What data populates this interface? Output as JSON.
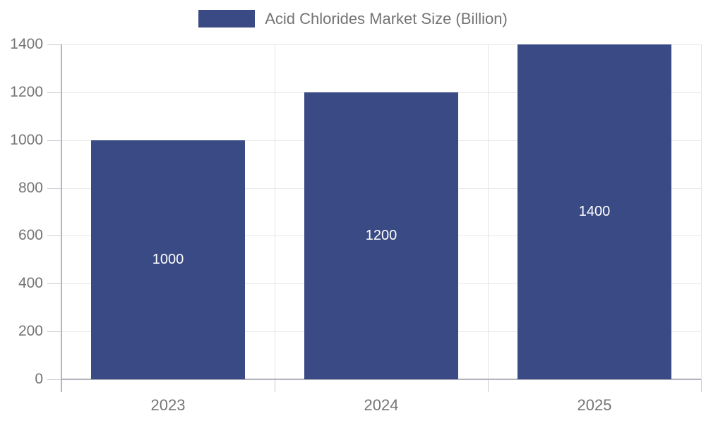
{
  "chart_data": {
    "type": "bar",
    "title": "Acid Chlorides Market Size (Billion)",
    "categories": [
      "2023",
      "2024",
      "2025"
    ],
    "values": [
      1000,
      1200,
      1400
    ],
    "series": [
      {
        "name": "Acid Chlorides Market Size (Billion)",
        "values": [
          1000,
          1200,
          1400
        ]
      }
    ],
    "data_labels": [
      "1000",
      "1200",
      "1400"
    ],
    "y_ticks": [
      "0",
      "200",
      "400",
      "600",
      "800",
      "1000",
      "1200",
      "1400"
    ],
    "ylim": [
      0,
      1400
    ],
    "xlabel": "",
    "ylabel": "",
    "grid": true,
    "legend_position": "top-center",
    "bar_color": "#3A4A84",
    "data_label_color": "#ffffff",
    "axis_label_color": "#757575",
    "legend_text_color": "#737373"
  }
}
